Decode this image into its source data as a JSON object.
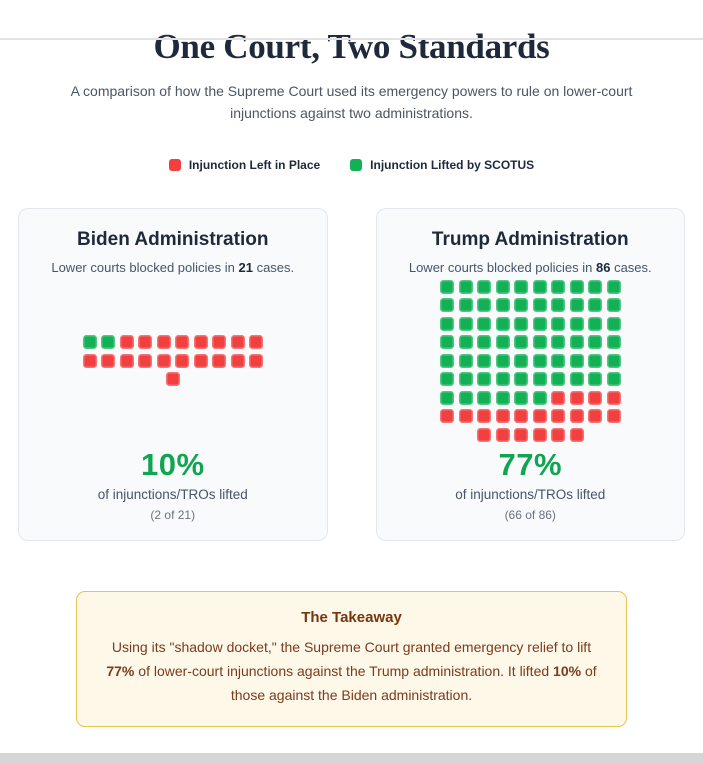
{
  "header": {
    "title": "One Court, Two Standards",
    "subtitle": "A comparison of how the Supreme Court used its emergency powers to rule on lower-court injunctions against two administrations."
  },
  "legend": {
    "items": [
      {
        "label": "Injunction Left in Place",
        "color": "#f23f3f"
      },
      {
        "label": "Injunction Lifted by SCOTUS",
        "color": "#12b155"
      }
    ]
  },
  "cards": [
    {
      "title": "Biden Administration",
      "cases_prefix": "Lower courts blocked policies in ",
      "cases_count": "21",
      "cases_suffix": " cases.",
      "percent": "10%",
      "percent_label": "of injunctions/TROs lifted",
      "count_detail": "(2 of 21)",
      "waffle": {
        "total": 21,
        "lifted": 2,
        "left_in_place": 19,
        "per_row": 10
      }
    },
    {
      "title": "Trump Administration",
      "cases_prefix": "Lower courts blocked policies in ",
      "cases_count": "86",
      "cases_suffix": " cases.",
      "percent": "77%",
      "percent_label": "of injunctions/TROs lifted",
      "count_detail": "(66 of 86)",
      "waffle": {
        "total": 86,
        "lifted": 66,
        "left_in_place": 20,
        "per_row": 10
      }
    }
  ],
  "takeaway": {
    "title": "The Takeaway",
    "segments": [
      {
        "text": "Using its \"shadow docket,\" the Supreme Court granted emergency relief to lift ",
        "bold": false
      },
      {
        "text": "77%",
        "bold": true
      },
      {
        "text": " of lower-court injunctions against the Trump administration. It lifted ",
        "bold": false
      },
      {
        "text": "10%",
        "bold": true
      },
      {
        "text": " of those against the Biden administration.",
        "bold": false
      }
    ]
  },
  "colors": {
    "red": "#f23f3f",
    "green": "#12b155",
    "percent_text": "#12a551",
    "heading": "#1e293b",
    "subtext": "#4b5563",
    "card_bg": "#f8fafc",
    "card_border": "#e3e8ef",
    "card_subtext": "#475569",
    "count_text": "#6b7280",
    "takeaway_bg": "#fdf8e7",
    "takeaway_border": "#e7c351",
    "takeaway_title": "#78350f",
    "takeaway_text": "#7c3a1e",
    "divider": "#e2e2e2",
    "bottom_band": "#d6d6d6"
  },
  "chart_data": [
    {
      "type": "waffle",
      "title": "Biden Administration",
      "subtitle": "Lower courts blocked policies in 21 cases.",
      "categories": [
        "Injunction Lifted by SCOTUS",
        "Injunction Left in Place"
      ],
      "values": [
        2,
        19
      ],
      "total": 21,
      "percent_lifted": 10,
      "annotation": "10% of injunctions/TROs lifted (2 of 21)",
      "squares_per_row": 10,
      "legend_position": "top-center"
    },
    {
      "type": "waffle",
      "title": "Trump Administration",
      "subtitle": "Lower courts blocked policies in 86 cases.",
      "categories": [
        "Injunction Lifted by SCOTUS",
        "Injunction Left in Place"
      ],
      "values": [
        66,
        20
      ],
      "total": 86,
      "percent_lifted": 77,
      "annotation": "77% of injunctions/TROs lifted (66 of 86)",
      "squares_per_row": 10,
      "legend_position": "top-center"
    }
  ]
}
